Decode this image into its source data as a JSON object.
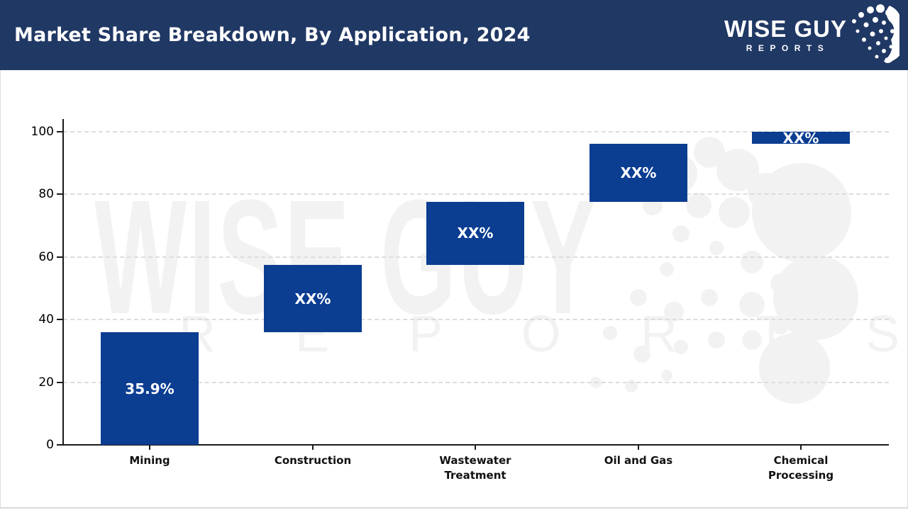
{
  "header": {
    "title": "Market Share Breakdown, By Application, 2024",
    "bg_color": "#203864",
    "logo": {
      "name": "WISE GUY",
      "subname": "REPORTS"
    }
  },
  "watermark": {
    "line1": "WISE GUY",
    "line2": "R E P O R T S"
  },
  "chart_data": {
    "type": "bar",
    "subtype": "waterfall",
    "title": "Market Share Breakdown, By Application, 2024",
    "xlabel": "",
    "ylabel": "",
    "ylim": [
      0,
      105
    ],
    "yticks": [
      0,
      20,
      40,
      60,
      80,
      100
    ],
    "grid": "horizontal-dashed",
    "legend": "none",
    "bar_color": "#0b3d91",
    "bar_label_color": "#ffffff",
    "categories": [
      "Mining",
      "Construction",
      "Wastewater Treatment",
      "Oil and Gas",
      "Chemical Processing"
    ],
    "category_lines": [
      [
        "Mining"
      ],
      [
        "Construction"
      ],
      [
        "Wastewater",
        "Treatment"
      ],
      [
        "Oil and Gas"
      ],
      [
        "Chemical",
        "Processing"
      ]
    ],
    "segments": [
      {
        "category": "Mining",
        "start": 0,
        "end": 35.9,
        "label": "35.9%"
      },
      {
        "category": "Construction",
        "start": 35.9,
        "end": 57.5,
        "label": "XX%"
      },
      {
        "category": "Wastewater Treatment",
        "start": 57.5,
        "end": 77.7,
        "label": "XX%"
      },
      {
        "category": "Oil and Gas",
        "start": 77.7,
        "end": 96.1,
        "label": "XX%"
      },
      {
        "category": "Chemical Processing",
        "start": 96.1,
        "end": 100,
        "label": "XX%"
      }
    ]
  }
}
